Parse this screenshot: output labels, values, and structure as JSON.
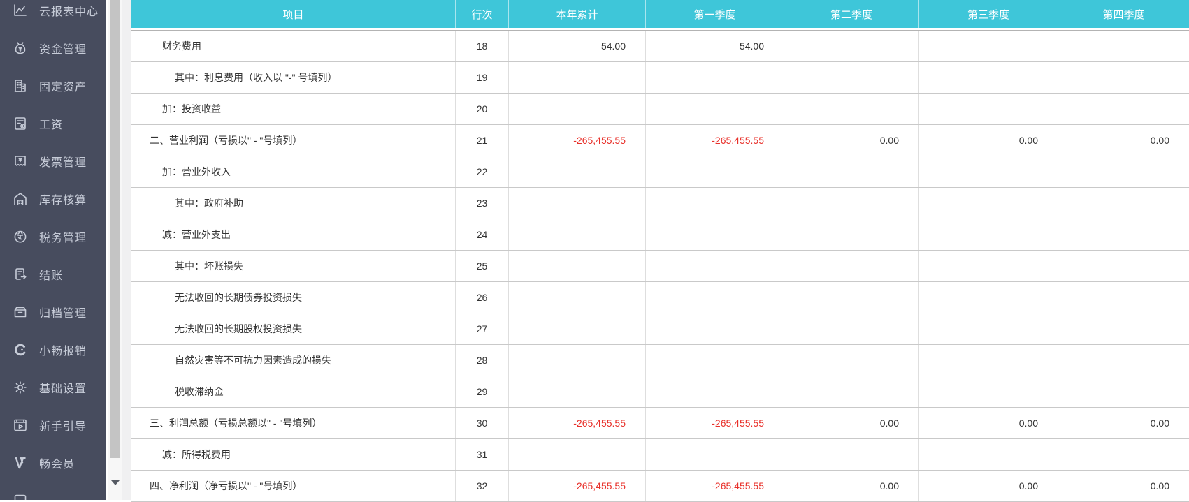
{
  "colors": {
    "sidebar_bg": "#474c5e",
    "sidebar_text": "#c7ccd8",
    "header_bg": "#3ec6d9",
    "header_text": "#ffffff",
    "body_text": "#333333",
    "negative_value": "#e8302a",
    "row_divider": "#c9c9c9",
    "scroll_thumb": "#c4c4c4"
  },
  "sidebar": {
    "items": [
      {
        "label": "云报表中心",
        "icon": "line-chart-icon"
      },
      {
        "label": "资金管理",
        "icon": "money-bag-icon"
      },
      {
        "label": "固定资产",
        "icon": "building-icon"
      },
      {
        "label": "工资",
        "icon": "salary-sheet-icon"
      },
      {
        "label": "发票管理",
        "icon": "invoice-icon"
      },
      {
        "label": "库存核算",
        "icon": "warehouse-icon"
      },
      {
        "label": "税务管理",
        "icon": "tax-seal-icon"
      },
      {
        "label": "结账",
        "icon": "closing-doc-icon"
      },
      {
        "label": "归档管理",
        "icon": "archive-icon"
      },
      {
        "label": "小畅报销",
        "icon": "chang-logo-icon"
      },
      {
        "label": "基础设置",
        "icon": "gear-icon"
      },
      {
        "label": "新手引导",
        "icon": "video-guide-icon"
      },
      {
        "label": "畅会员",
        "icon": "v-member-icon"
      },
      {
        "label": "",
        "icon": "partial-icon"
      }
    ]
  },
  "table": {
    "columns": [
      {
        "label": "项目"
      },
      {
        "label": "行次"
      },
      {
        "label": "本年累计"
      },
      {
        "label": "第一季度"
      },
      {
        "label": "第二季度"
      },
      {
        "label": "第三季度"
      },
      {
        "label": "第四季度"
      }
    ],
    "rows": [
      {
        "label": "财务费用",
        "indent": 1,
        "line_no": "18",
        "values": [
          "54.00",
          "54.00",
          "",
          "",
          ""
        ]
      },
      {
        "label": "其中：利息费用（收入以 \"-\" 号填列）",
        "indent": 2,
        "line_no": "19",
        "values": [
          "",
          "",
          "",
          "",
          ""
        ]
      },
      {
        "label": "加：投资收益",
        "indent": 1,
        "line_no": "20",
        "values": [
          "",
          "",
          "",
          "",
          ""
        ]
      },
      {
        "label": "二、营业利润（亏损以\" - \"号填列）",
        "indent": 0,
        "line_no": "21",
        "values": [
          "-265,455.55",
          "-265,455.55",
          "0.00",
          "0.00",
          "0.00"
        ]
      },
      {
        "label": "加：营业外收入",
        "indent": 1,
        "line_no": "22",
        "values": [
          "",
          "",
          "",
          "",
          ""
        ]
      },
      {
        "label": "其中：政府补助",
        "indent": 2,
        "line_no": "23",
        "values": [
          "",
          "",
          "",
          "",
          ""
        ]
      },
      {
        "label": "减：营业外支出",
        "indent": 1,
        "line_no": "24",
        "values": [
          "",
          "",
          "",
          "",
          ""
        ]
      },
      {
        "label": "其中：坏账损失",
        "indent": 2,
        "line_no": "25",
        "values": [
          "",
          "",
          "",
          "",
          ""
        ]
      },
      {
        "label": "无法收回的长期债券投资损失",
        "indent": 2,
        "line_no": "26",
        "values": [
          "",
          "",
          "",
          "",
          ""
        ]
      },
      {
        "label": "无法收回的长期股权投资损失",
        "indent": 2,
        "line_no": "27",
        "values": [
          "",
          "",
          "",
          "",
          ""
        ]
      },
      {
        "label": "自然灾害等不可抗力因素造成的损失",
        "indent": 2,
        "line_no": "28",
        "values": [
          "",
          "",
          "",
          "",
          ""
        ]
      },
      {
        "label": "税收滞纳金",
        "indent": 2,
        "line_no": "29",
        "values": [
          "",
          "",
          "",
          "",
          ""
        ]
      },
      {
        "label": "三、利润总额（亏损总额以\" - \"号填列）",
        "indent": 0,
        "line_no": "30",
        "values": [
          "-265,455.55",
          "-265,455.55",
          "0.00",
          "0.00",
          "0.00"
        ]
      },
      {
        "label": "减：所得税费用",
        "indent": 1,
        "line_no": "31",
        "values": [
          "",
          "",
          "",
          "",
          ""
        ]
      },
      {
        "label": "四、净利润（净亏损以\" - \"号填列）",
        "indent": 0,
        "line_no": "32",
        "values": [
          "-265,455.55",
          "-265,455.55",
          "0.00",
          "0.00",
          "0.00"
        ]
      }
    ]
  }
}
